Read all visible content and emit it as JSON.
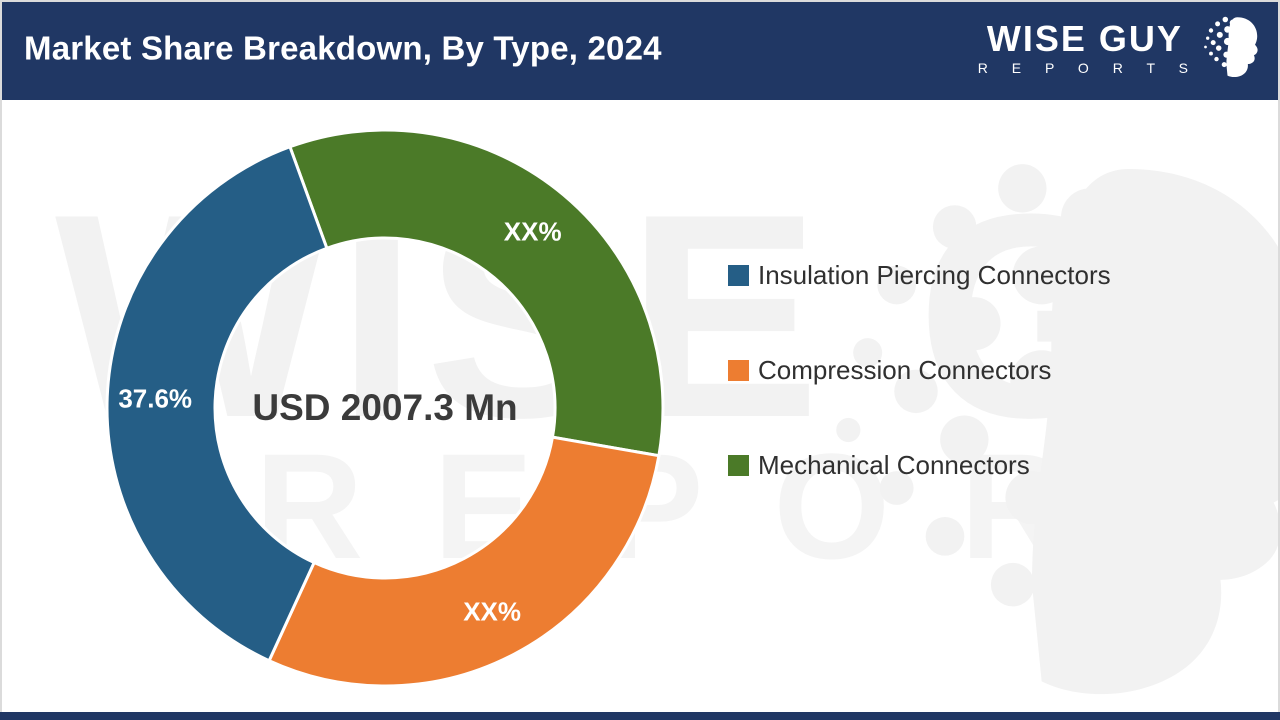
{
  "header": {
    "title": "Market Share Breakdown, By Type, 2024",
    "bg_color": "#203764",
    "logo": {
      "line1": "WISE GUY",
      "line2": "R E P O R T S"
    }
  },
  "watermark": {
    "line1": "WISE GUY",
    "line2": "REPORTS"
  },
  "chart_data": {
    "type": "pie",
    "donut": true,
    "title": "Market Share Breakdown, By Type, 2024",
    "center_label": "USD 2007.3 Mn",
    "start_angle_deg": 340,
    "legend_position": "right",
    "segments": [
      {
        "name": "Mechanical Connectors",
        "display_label": "XX%",
        "percent": 33.3,
        "color": "#4B7A28"
      },
      {
        "name": "Compression Connectors",
        "display_label": "XX%",
        "percent": 29.1,
        "color": "#ED7D31"
      },
      {
        "name": "Insulation Piercing Connectors",
        "display_label": "37.6%",
        "percent": 37.6,
        "color": "#255E86"
      }
    ]
  },
  "legend": {
    "items": [
      {
        "label": "Insulation Piercing Connectors",
        "color": "#255E86"
      },
      {
        "label": "Compression Connectors",
        "color": "#ED7D31"
      },
      {
        "label": "Mechanical Connectors",
        "color": "#4B7A28"
      }
    ]
  },
  "colors": {
    "header_navy": "#203764",
    "footer_navy": "#203764",
    "frame_border": "#DBDBDB",
    "center_text": "#3B3B3B",
    "legend_text": "#303030",
    "watermark": "#F2F2F2"
  }
}
